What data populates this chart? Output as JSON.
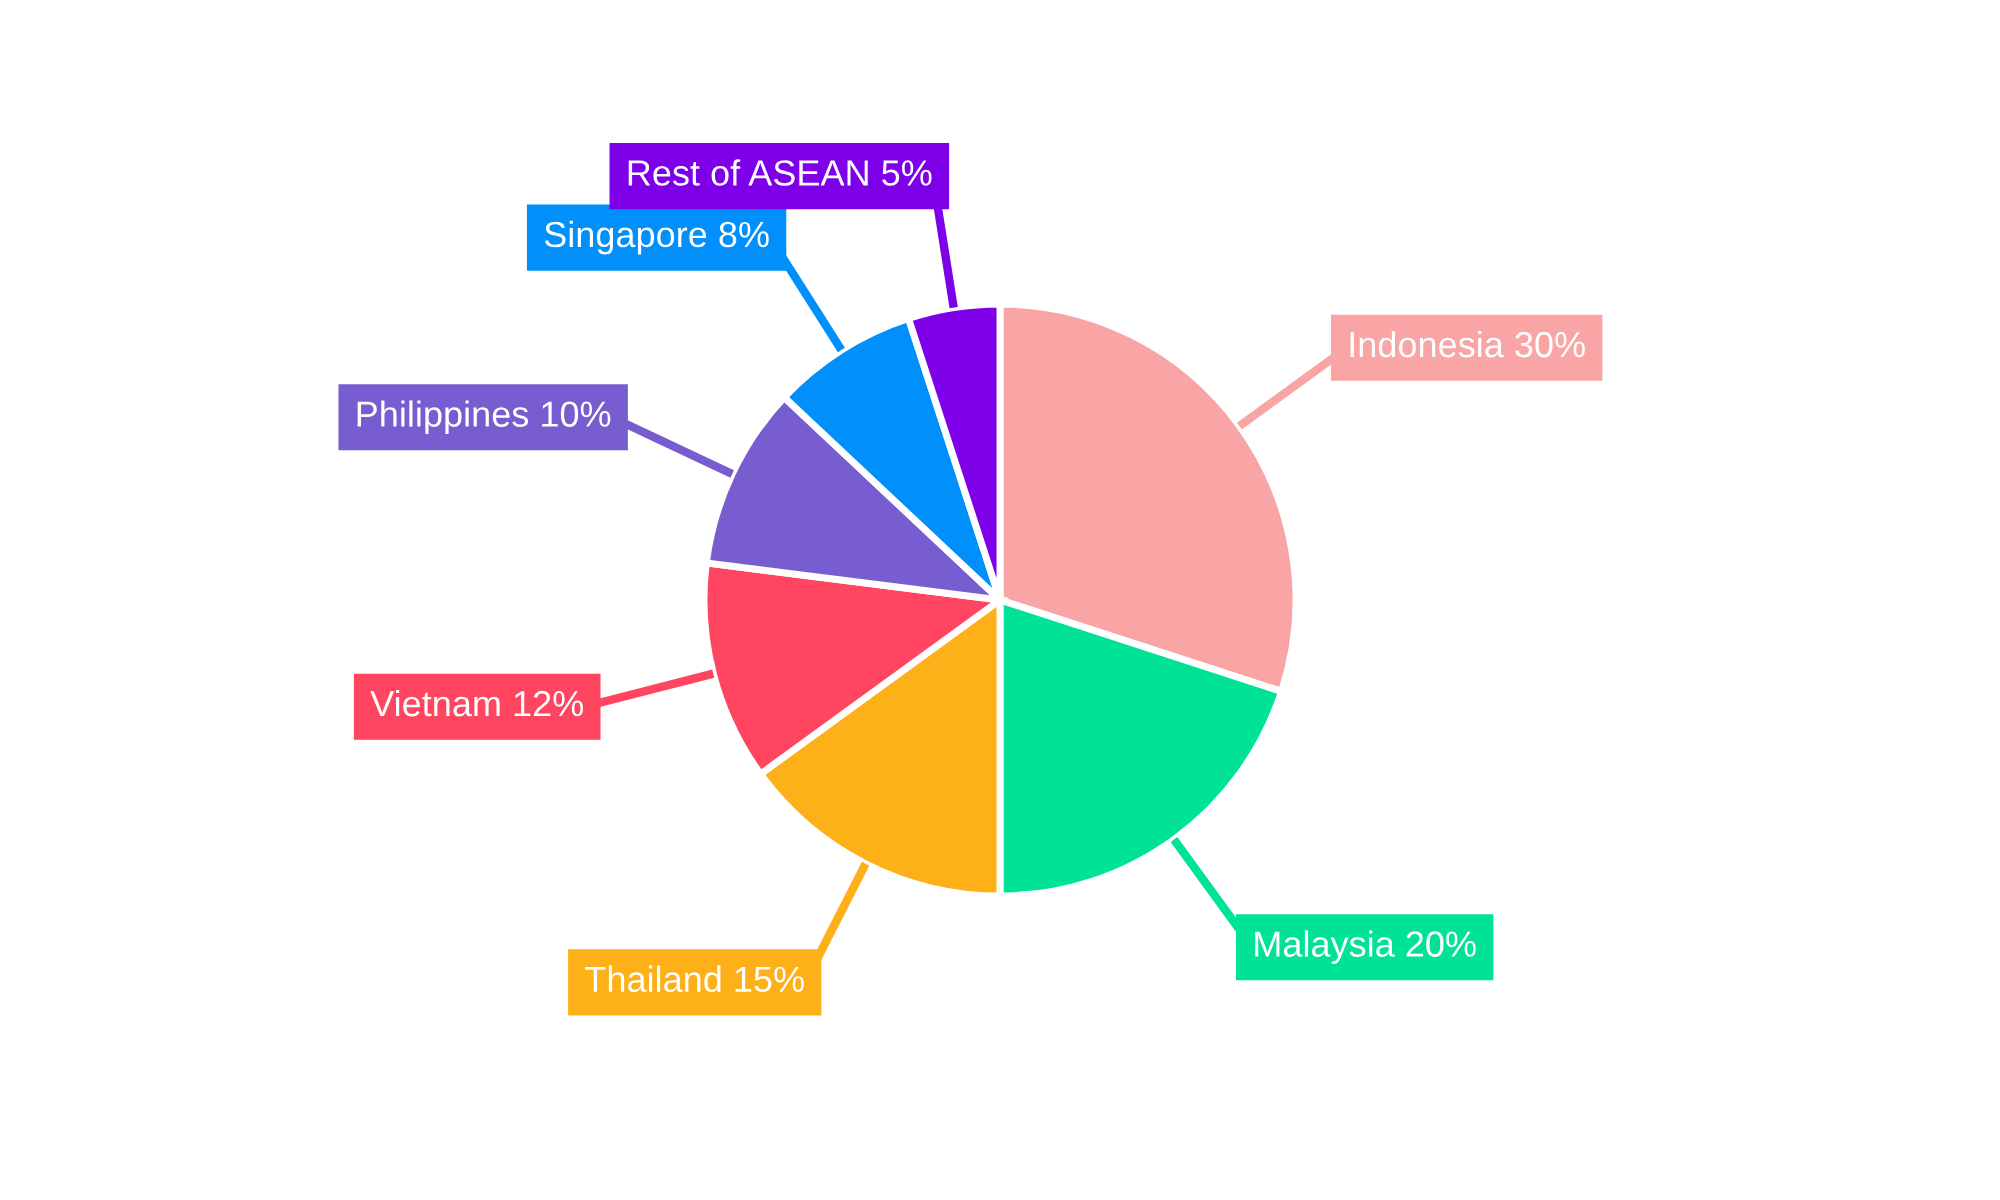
{
  "chart_data": {
    "type": "pie",
    "categories": [
      "Indonesia",
      "Malaysia",
      "Thailand",
      "Vietnam",
      "Philippines",
      "Singapore",
      "Rest of ASEAN"
    ],
    "values": [
      30,
      20,
      15,
      12,
      10,
      8,
      5
    ],
    "value_labels": [
      "30%",
      "20%",
      "15%",
      "12%",
      "10%",
      "8%",
      "5%"
    ],
    "colors": [
      "#f9a5a6",
      "#00e396",
      "#feb019",
      "#ff4560",
      "#775dd0",
      "#008ffb",
      "#7e00e8"
    ],
    "legend": false
  }
}
